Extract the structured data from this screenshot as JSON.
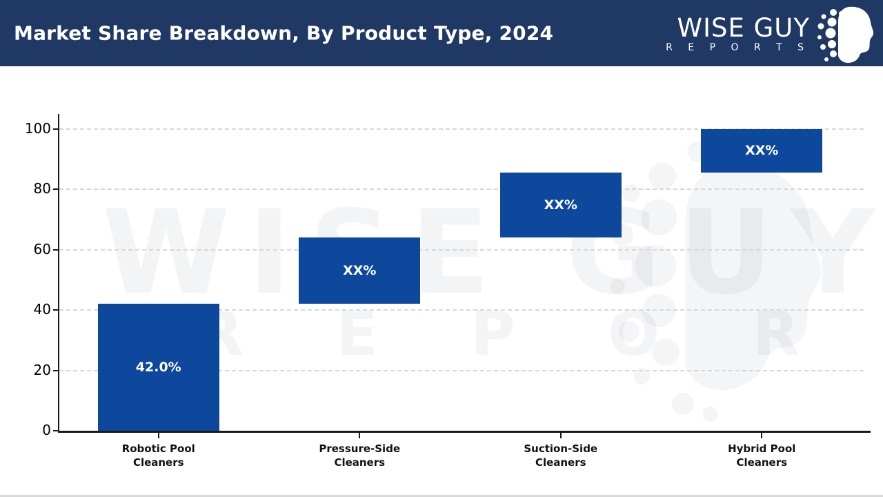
{
  "header": {
    "title": "Market Share Breakdown, By Product Type, 2024",
    "bg_color": "#1f3864",
    "logo": {
      "line1": "WISE GUY",
      "line2": "R E P O R T S"
    }
  },
  "watermark": {
    "line1": "WISE GUY",
    "line2": "R E P O R T S"
  },
  "chart_data": {
    "type": "bar",
    "subtype": "waterfall-floating-bars",
    "title": "Market Share Breakdown, By Product Type, 2024",
    "categories": [
      "Robotic Pool\nCleaners",
      "Pressure-Side\nCleaners",
      "Suction-Side\nCleaners",
      "Hybrid Pool\nCleaners"
    ],
    "segments": [
      {
        "start": 0,
        "end": 42,
        "label": "42.0%"
      },
      {
        "start": 42,
        "end": 64,
        "label": "XX%"
      },
      {
        "start": 64,
        "end": 85.5,
        "label": "XX%"
      },
      {
        "start": 85.5,
        "end": 100,
        "label": "XX%"
      }
    ],
    "xlabel": "",
    "ylabel": "",
    "ylim": [
      0,
      100
    ],
    "yticks": [
      0,
      20,
      40,
      60,
      80,
      100
    ],
    "grid": "horizontal-dashed",
    "legend": "none",
    "bar_color": "#0d489c",
    "bar_label_color": "#ffffff",
    "axis_color": "#1a1a1a",
    "grid_color": "#d8d8d8"
  }
}
